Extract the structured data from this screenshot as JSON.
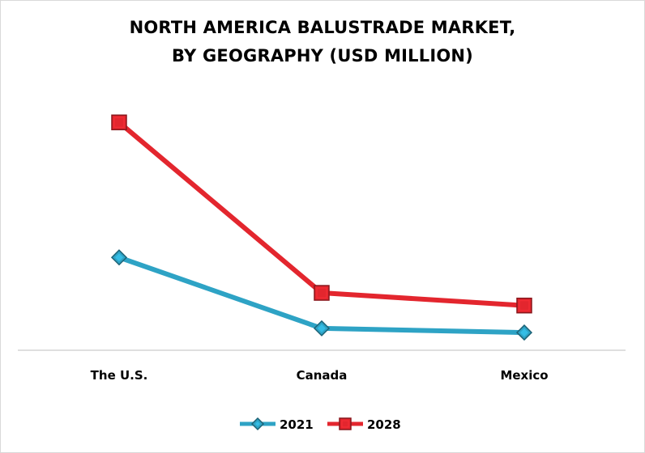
{
  "chart_data": {
    "type": "line",
    "title_line1": "NORTH AMERICA BALUSTRADE MARKET,",
    "title_line2": "BY GEOGRAPHY (USD MILLION)",
    "categories": [
      "The U.S.",
      "Canada",
      "Mexico"
    ],
    "series": [
      {
        "name": "2021",
        "values": [
          110,
          26,
          21
        ],
        "color": "#2ea3c5",
        "marker": "diamond-icon"
      },
      {
        "name": "2028",
        "values": [
          270,
          68,
          53
        ],
        "color": "#e3262e",
        "marker": "square-icon"
      }
    ],
    "ylim": [
      0,
      300
    ],
    "grid": false,
    "y_axis_visible": false,
    "legend_position": "bottom"
  }
}
